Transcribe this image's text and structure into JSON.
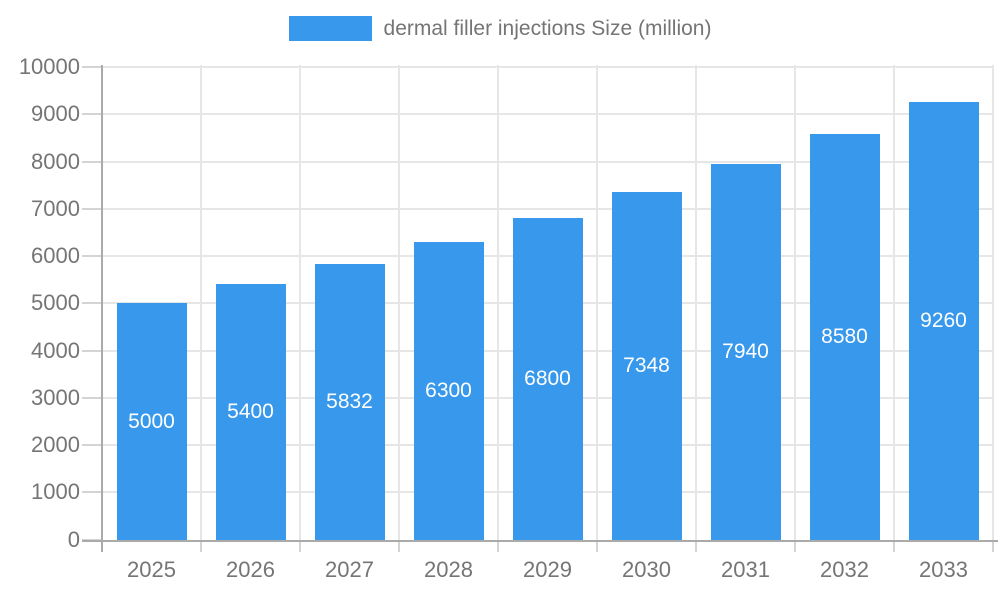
{
  "legend": {
    "items": [
      {
        "label": "dermal filler injections Size (million)",
        "color": "#3899EC"
      }
    ]
  },
  "chart_data": {
    "type": "bar",
    "title": "",
    "categories": [
      "2025",
      "2026",
      "2027",
      "2028",
      "2029",
      "2030",
      "2031",
      "2032",
      "2033"
    ],
    "series": [
      {
        "name": "dermal filler injections Size (million)",
        "color": "#3899EC",
        "values": [
          5000,
          5400,
          5832,
          6300,
          6800,
          7348,
          7940,
          8580,
          9260
        ]
      }
    ],
    "xlabel": "",
    "ylabel": "",
    "ylim": [
      0,
      10000
    ],
    "ytick_step": 1000,
    "yticks": [
      0,
      1000,
      2000,
      3000,
      4000,
      5000,
      6000,
      7000,
      8000,
      9000,
      10000
    ],
    "grid": true,
    "legend_position": "top",
    "value_label_position": "inside-center",
    "value_label_color": "#FFFFFF"
  },
  "colors": {
    "background": "#FFFFFF",
    "bar": "#3899EC",
    "axis_line": "#AAAAAA",
    "grid_line": "#E6E6E6",
    "tick_mark": "#D4D4D4",
    "tick_text": "#757575",
    "legend_text": "#757575",
    "value_text": "#FFFFFF"
  }
}
